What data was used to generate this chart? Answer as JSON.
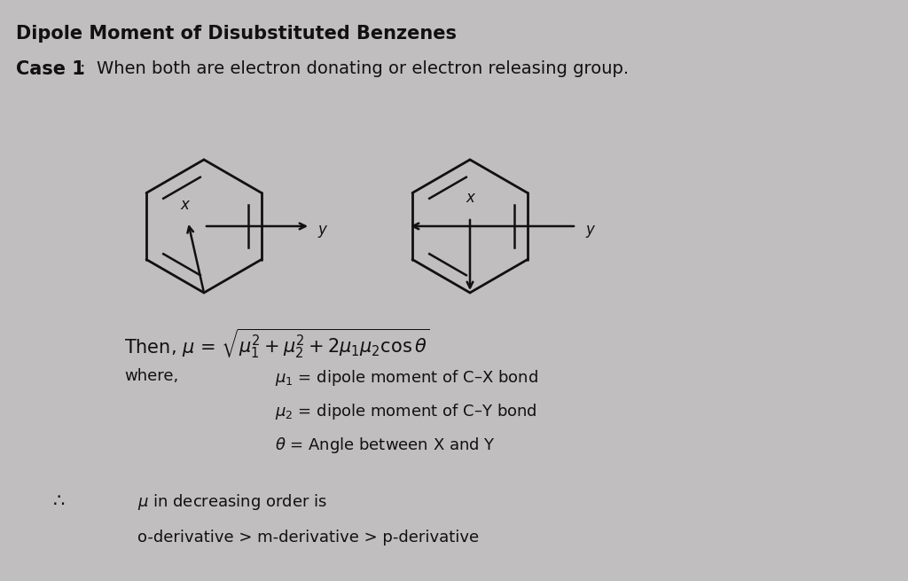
{
  "bg_color": "#c0bebe",
  "title": "Dipole Moment of Disubstituted Benzenes",
  "case_label": "Case 1",
  "case_text": ":  When both are electron donating or electron releasing group.",
  "therefore_symbol": "∴",
  "therefore_text": "μ in decreasing order is",
  "order_text": "o-derivative > m-derivative > p-derivative",
  "text_color": "#111111",
  "line_color": "#111111",
  "font_size_title": 15,
  "font_size_body": 13,
  "font_size_formula": 15
}
